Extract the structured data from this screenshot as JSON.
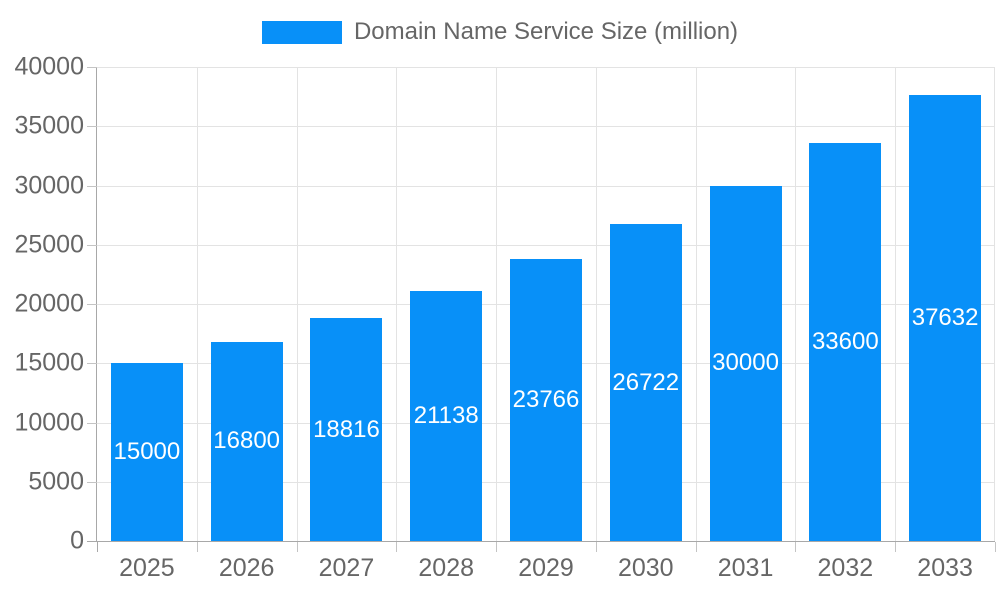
{
  "chart_data": {
    "type": "bar",
    "title": "Domain Name Service Size (million)",
    "legend": {
      "label": "Domain Name Service Size (million)",
      "position": "top"
    },
    "categories": [
      "2025",
      "2026",
      "2027",
      "2028",
      "2029",
      "2030",
      "2031",
      "2032",
      "2033"
    ],
    "values": [
      15000,
      16800,
      18816,
      21138,
      23766,
      26722,
      30000,
      33600,
      37632
    ],
    "value_labels": [
      "15000",
      "16800",
      "18816",
      "21138",
      "23766",
      "26722",
      "30000",
      "33600",
      "37632"
    ],
    "y_ticks": [
      0,
      5000,
      10000,
      15000,
      20000,
      25000,
      30000,
      35000,
      40000
    ],
    "ylim": [
      0,
      40000
    ],
    "xlabel": "",
    "ylabel": "",
    "grid": true,
    "value_label_position": "center-of-bar",
    "colors": {
      "bar": "#0890f8",
      "bar_value_text": "#ffffff",
      "axis_text": "#666666",
      "legend_text": "#666666",
      "gridline": "#e3e3e3",
      "axis_line": "#a8a8a8",
      "tick": "#c4c4c4",
      "background": "#ffffff"
    }
  }
}
